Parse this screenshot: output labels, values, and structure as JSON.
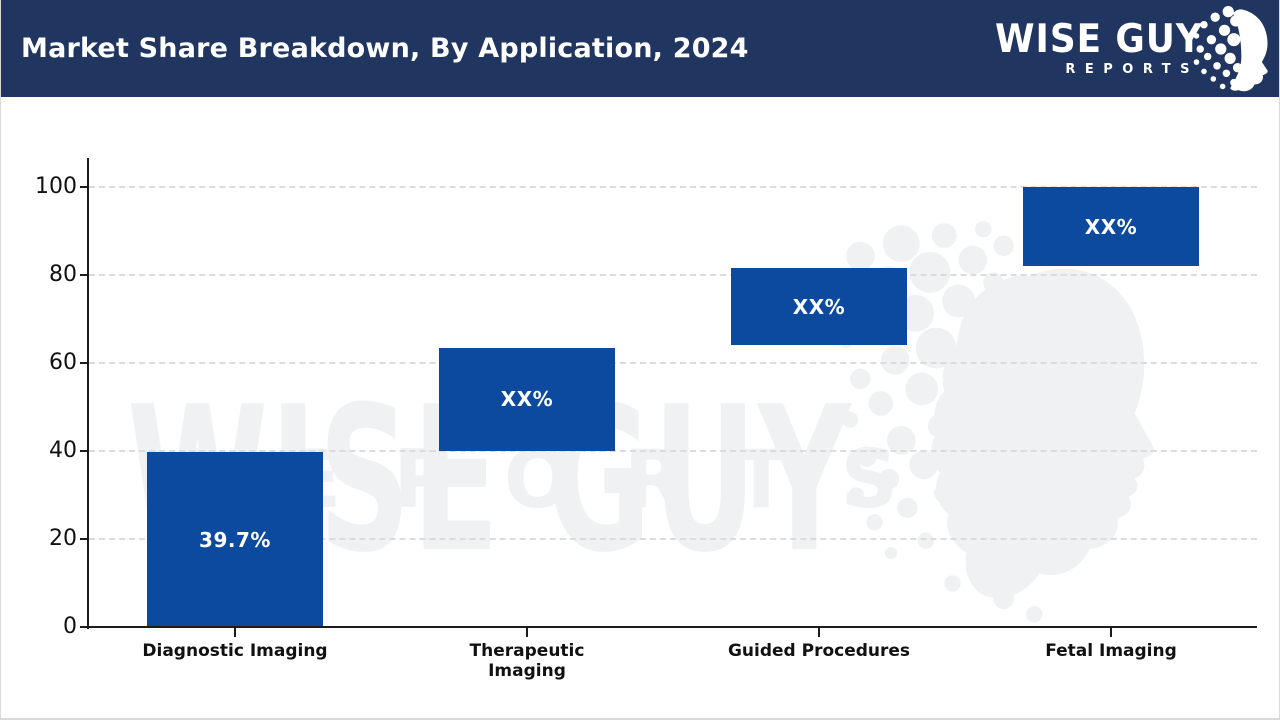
{
  "header": {
    "title": "Market Share Breakdown, By Application, 2024",
    "bg_color": "#20355f",
    "logo": {
      "line1": "WISE GUY",
      "line2": "REPORTS"
    }
  },
  "watermark": {
    "line1": "WISE GUY",
    "line2": "REPORTS"
  },
  "chart_data": {
    "type": "bar",
    "subtype": "floating-waterfall",
    "title": "Market Share Breakdown, By Application, 2024",
    "categories": [
      "Diagnostic Imaging",
      "Therapeutic\nImaging",
      "Guided Procedures",
      "Fetal Imaging"
    ],
    "series": [
      {
        "name": "Diagnostic Imaging",
        "start": 0,
        "end": 39.7,
        "label": "39.7%"
      },
      {
        "name": "Therapeutic Imaging",
        "start": 40,
        "end": 63.5,
        "label": "XX%"
      },
      {
        "name": "Guided Procedures",
        "start": 64,
        "end": 81.5,
        "label": "XX%"
      },
      {
        "name": "Fetal Imaging",
        "start": 82,
        "end": 100,
        "label": "XX%"
      }
    ],
    "yticks": [
      0,
      20,
      40,
      60,
      80,
      100
    ],
    "ylim": [
      0,
      106
    ],
    "grid": "horizontal-dashed",
    "legend": "none",
    "bar_color": "#0b4a9e",
    "value_label_color": "#ffffff",
    "grid_color": "#dcdcdc",
    "axis_color": "#1c1c1c"
  }
}
